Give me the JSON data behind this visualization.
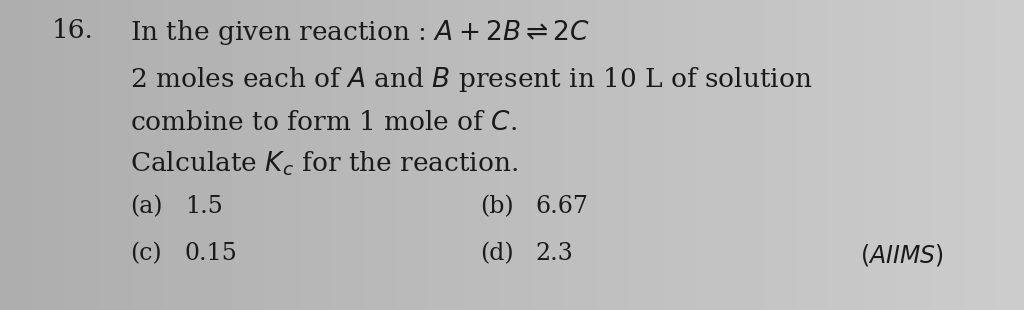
{
  "background_color_left": "#b0b0b0",
  "background_color_right": "#c8c8c8",
  "background_color_center": "#cccccc",
  "text_color": "#1a1a1a",
  "q_num": "16.",
  "line1a": "In the given reaction : ",
  "line1b": "$A + 2B \\rightleftharpoons 2C$",
  "line2": "2 moles each of $A$ and $B$ present in 10 L of solution",
  "line3": "combine to form 1 mole of $C$.",
  "line4": "Calculate $K_c$ for the reaction.",
  "opt_a_label": "(a)",
  "opt_a_val": "1.5",
  "opt_b_label": "(b)",
  "opt_b_val": "6.67",
  "opt_c_label": "(c)",
  "opt_c_val": "0.15",
  "opt_d_label": "(d)",
  "opt_d_val": "2.3",
  "source": "$(\\it{AIIMS})$",
  "fontsize_main": 19,
  "fontsize_opts": 17,
  "fontsize_source": 17
}
